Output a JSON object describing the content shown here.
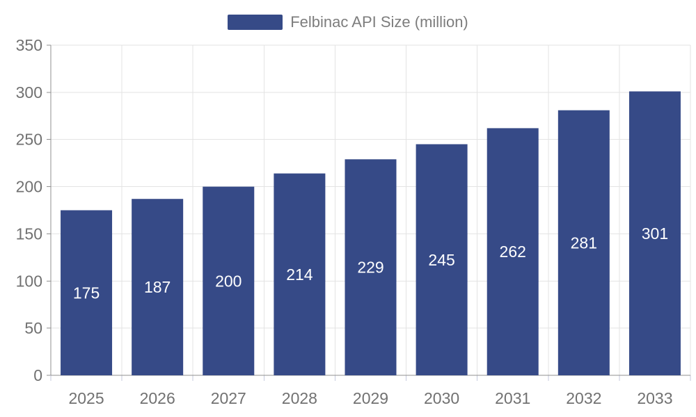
{
  "legend": {
    "position": "top-center",
    "items": [
      {
        "label": "Felbinac API Size (million)",
        "swatch_color": "#364A87"
      }
    ]
  },
  "chart_data": {
    "type": "bar",
    "title": "Felbinac API Size (million)",
    "categories": [
      "2025",
      "2026",
      "2027",
      "2028",
      "2029",
      "2030",
      "2031",
      "2032",
      "2033"
    ],
    "series": [
      {
        "name": "Felbinac API Size (million)",
        "values": [
          175,
          187,
          200,
          214,
          229,
          245,
          262,
          281,
          301
        ],
        "color": "#364A87"
      }
    ],
    "value_labels": {
      "position": "inside-center",
      "color": "#ffffff"
    },
    "xlabel": "",
    "ylabel": "",
    "ylim": [
      0,
      350
    ],
    "ytick_step": 50,
    "ytick_labels": [
      "0",
      "50",
      "100",
      "150",
      "200",
      "250",
      "300",
      "350"
    ],
    "grid": true,
    "legend_position": "top-center",
    "colors": {
      "axis_line": "#8f8f8f",
      "grid_line": "#e3e3e3",
      "tick_label": "#717171",
      "x_tick_mark": "#c5cadd",
      "background": "#ffffff"
    }
  }
}
